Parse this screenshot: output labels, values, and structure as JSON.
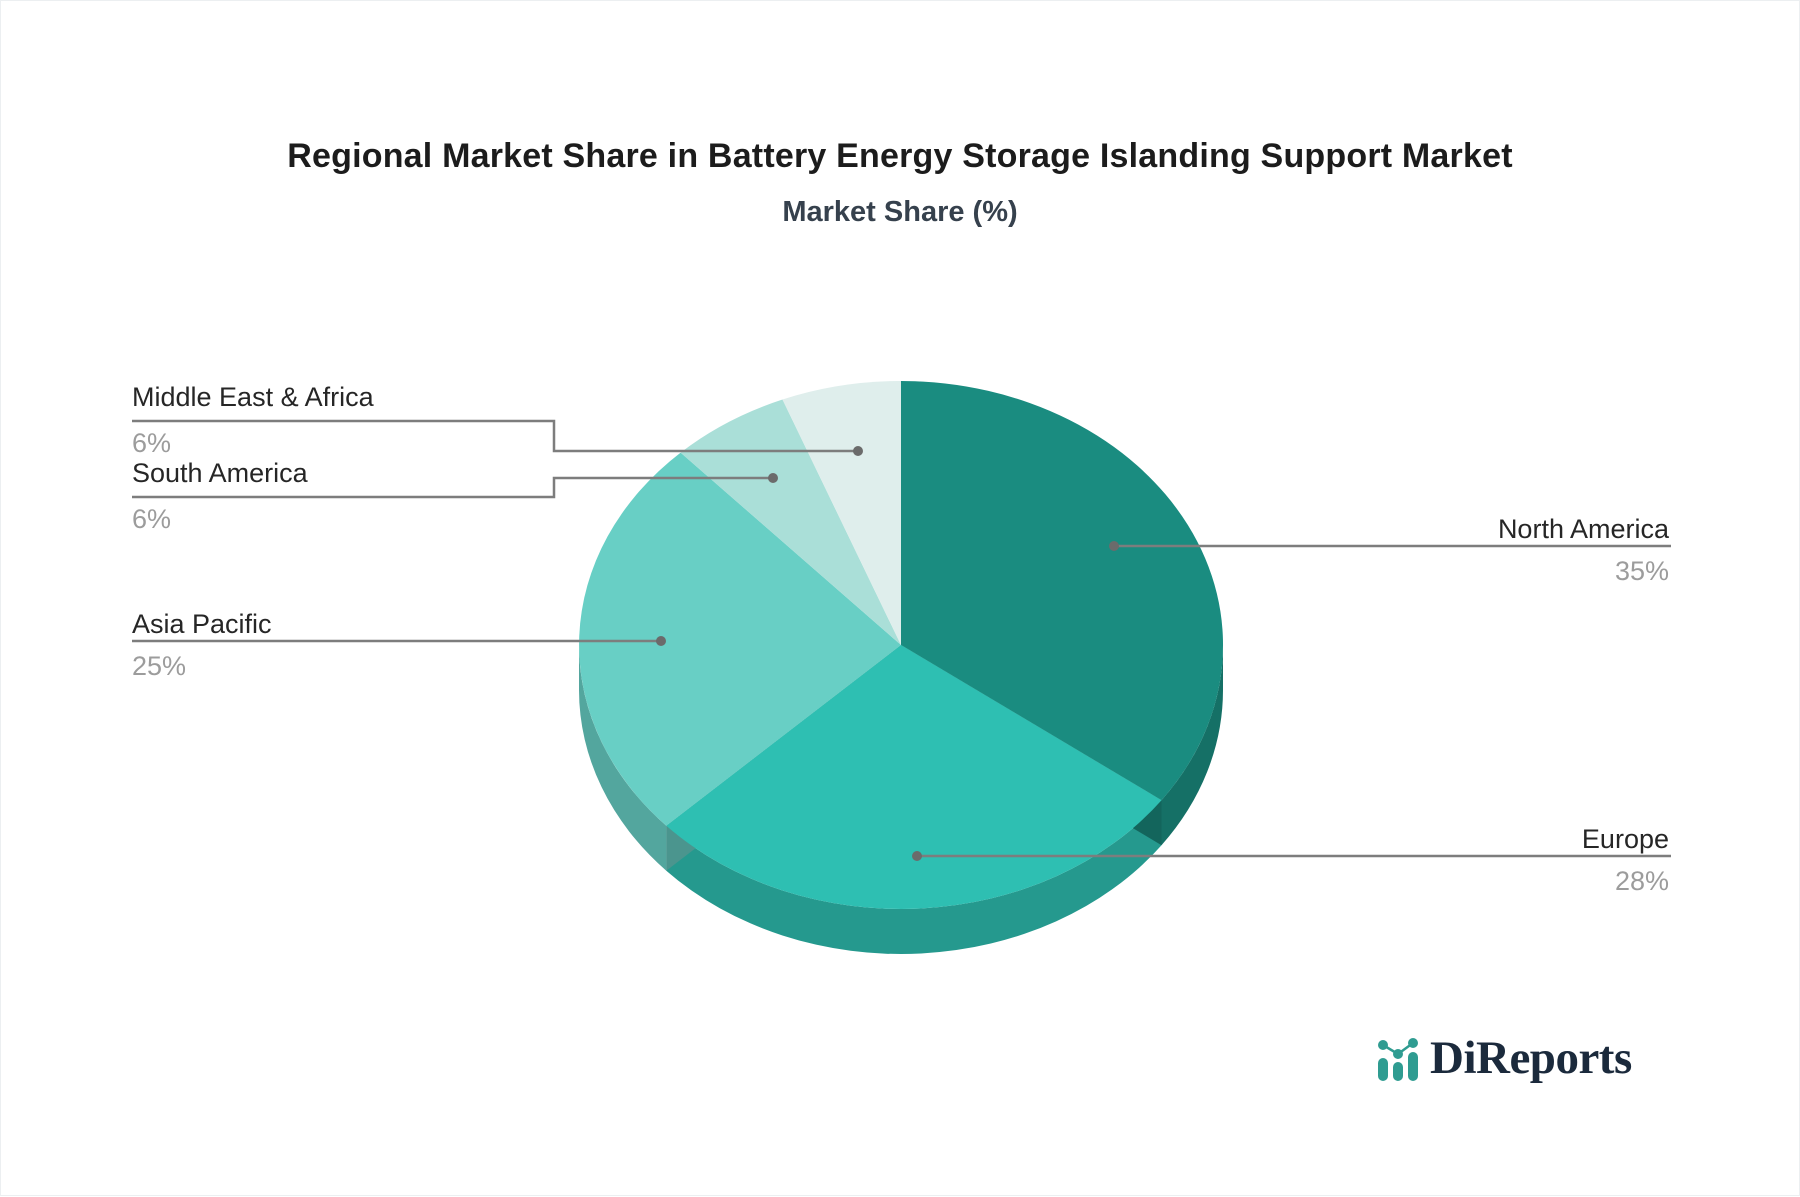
{
  "title": "Regional Market Share in Battery Energy Storage Islanding Support Market",
  "subtitle": "Market Share (%)",
  "brand": {
    "name": "DiReports"
  },
  "chart_data": {
    "type": "pie",
    "style": "3d",
    "title": "Regional Market Share in Battery Energy Storage Islanding Support Market",
    "subtitle": "Market Share (%)",
    "unit": "%",
    "start_angle_deg": 0,
    "direction": "clockwise",
    "legend": "none",
    "series": [
      {
        "label": "North America",
        "value": 35,
        "value_label": "35%",
        "color": "#1a8c80"
      },
      {
        "label": "Europe",
        "value": 28,
        "value_label": "28%",
        "color": "#2ebfb2"
      },
      {
        "label": "Asia Pacific",
        "value": 25,
        "value_label": "25%",
        "color": "#68cfc5"
      },
      {
        "label": "South America",
        "value": 6,
        "value_label": "6%",
        "color": "#aadfd8"
      },
      {
        "label": "Middle East & Africa",
        "value": 6,
        "value_label": "6%",
        "color": "#dfeeec"
      }
    ],
    "leader_line_color": "#7d7d7d",
    "leader_dot_color": "#6b6b6b",
    "label_color": "#262626",
    "value_color": "#9c9c9c"
  }
}
